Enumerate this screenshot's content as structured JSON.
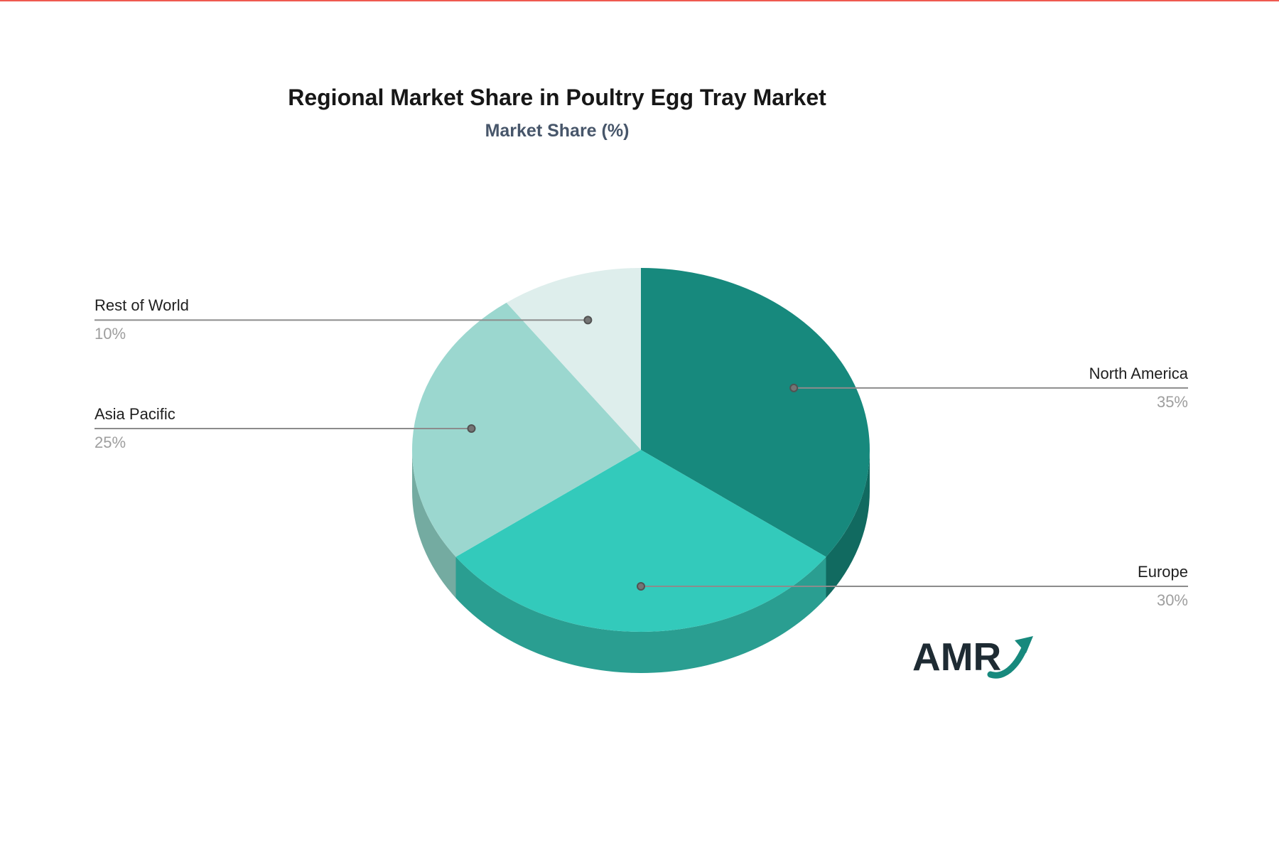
{
  "title": "Regional Market Share in Poultry Egg Tray Market",
  "subtitle": "Market Share (%)",
  "logo": {
    "text": "AMR"
  },
  "chart_data": {
    "type": "pie",
    "style": "3d",
    "unit": "%",
    "start_angle_deg": 0,
    "direction": "clockwise",
    "title": "Regional Market Share in Poultry Egg Tray Market",
    "subtitle": "Market Share (%)",
    "legend_position": "none",
    "labels_layout": "leader-lines",
    "slices": [
      {
        "label": "North America",
        "value": 35,
        "pct_label": "35%",
        "color": "#17897d",
        "side_color": "#116a60",
        "label_side": "right"
      },
      {
        "label": "Europe",
        "value": 30,
        "pct_label": "30%",
        "color": "#33cabb",
        "side_color": "#2a9e91",
        "label_side": "right"
      },
      {
        "label": "Asia Pacific",
        "value": 25,
        "pct_label": "25%",
        "color": "#9bd7cf",
        "side_color": "#74aba1",
        "label_side": "left"
      },
      {
        "label": "Rest of World",
        "value": 10,
        "pct_label": "10%",
        "color": "#deeeec",
        "side_color": "#c5dcd8",
        "label_side": "left"
      }
    ],
    "leader_line_color": "#8c8c8c",
    "leader_dot_color": "#757575",
    "label_color": "#1f1f1f",
    "pct_color": "#9e9e9e"
  }
}
